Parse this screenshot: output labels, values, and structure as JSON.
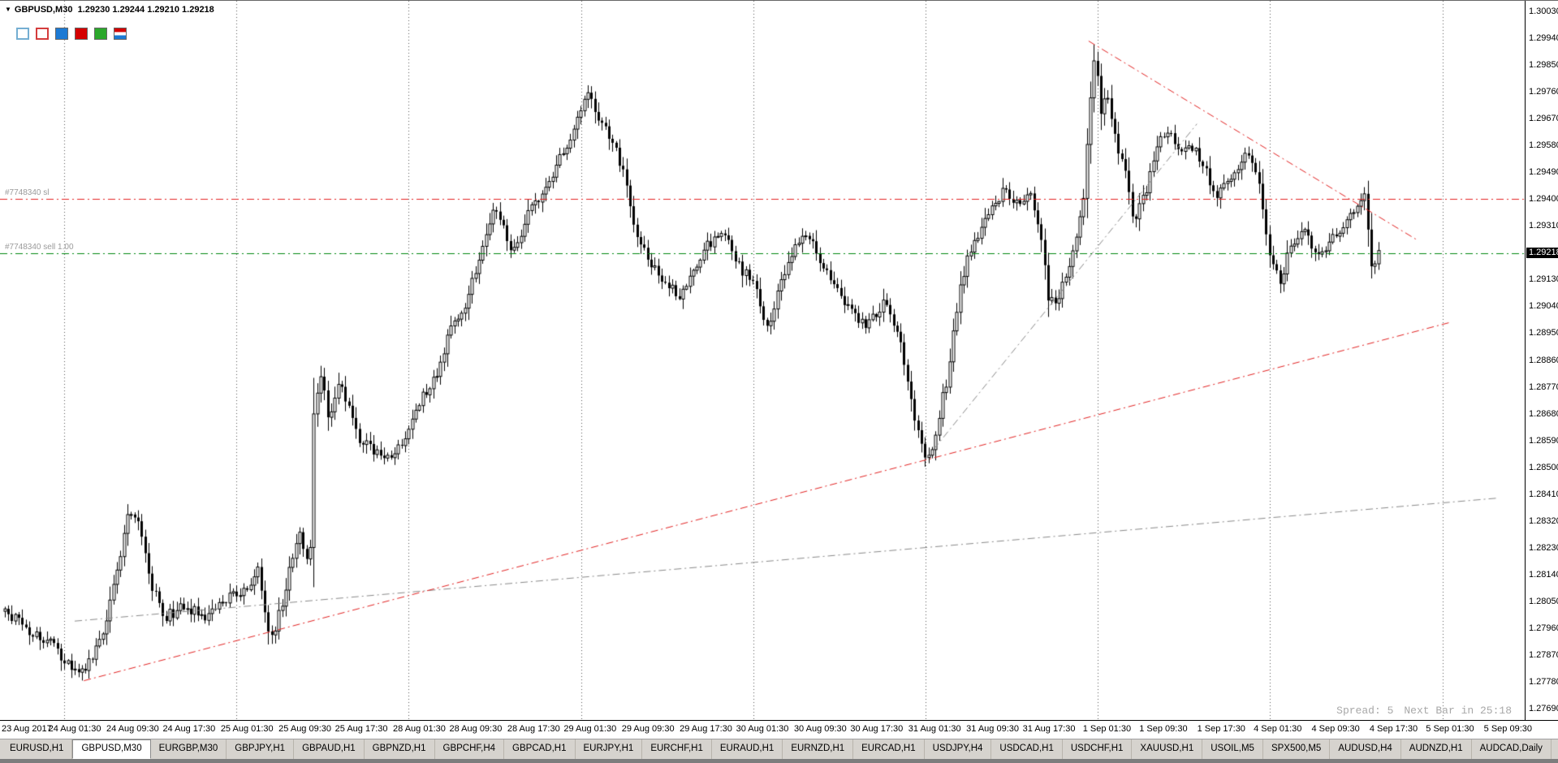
{
  "header": {
    "dropdown_glyph": "▼",
    "title": "GBPUSD,M30",
    "ohlc": "1.29230 1.29244 1.29210 1.29218"
  },
  "toolbar": {
    "swatches": [
      {
        "name": "swatch-outline-blue-icon",
        "style": "outline",
        "color": "#74aed2"
      },
      {
        "name": "swatch-outline-red-icon",
        "style": "outline",
        "color": "#d43c3c"
      },
      {
        "name": "swatch-fill-blue-icon",
        "style": "fill",
        "color": "#1c7ad4"
      },
      {
        "name": "swatch-fill-red-icon",
        "style": "fill",
        "color": "#d40000"
      },
      {
        "name": "swatch-fill-green-icon",
        "style": "fill",
        "color": "#2ca82c"
      },
      {
        "name": "swatch-stripes-icon",
        "style": "stripes",
        "colors": [
          "#d40000",
          "#ffffff",
          "#1c7ad4"
        ]
      }
    ]
  },
  "status": {
    "spread": "Spread: 5",
    "next_bar": "Next Bar in 25:18"
  },
  "tabs": {
    "active_index": 1,
    "items": [
      "EURUSD,H1",
      "GBPUSD,M30",
      "EURGBP,M30",
      "GBPJPY,H1",
      "GBPAUD,H1",
      "GBPNZD,H1",
      "GBPCHF,H4",
      "GBPCAD,H1",
      "EURJPY,H1",
      "EURCHF,H1",
      "EURAUD,H1",
      "EURNZD,H1",
      "EURCAD,H1",
      "USDJPY,H4",
      "USDCAD,H1",
      "USDCHF,H1",
      "XAUUSD,H1",
      "USOIL,M5",
      "SPX500,M5",
      "AUDUSD,H4",
      "AUDNZD,H1",
      "AUDCAD,Daily"
    ]
  },
  "chart_data": {
    "type": "candlestick",
    "symbol": "GBPUSD",
    "timeframe": "M30",
    "current_price": "1.29218",
    "candle_style": {
      "bull": "#ffffff",
      "bear": "#000000",
      "outline": "#000000"
    },
    "grid_color": "#555555",
    "y_axis": {
      "min": 1.27655,
      "max": 1.30065,
      "labels": [
        "1.30030",
        "1.29940",
        "1.29850",
        "1.29760",
        "1.29670",
        "1.29580",
        "1.29490",
        "1.29400",
        "1.29310",
        "1.29130",
        "1.29040",
        "1.28950",
        "1.28860",
        "1.28770",
        "1.28680",
        "1.28590",
        "1.28500",
        "1.28410",
        "1.28320",
        "1.28230",
        "1.28140",
        "1.28050",
        "1.27960",
        "1.27870",
        "1.27780",
        "1.27690"
      ]
    },
    "x_axis_labels": [
      {
        "label": "23 Aug 2017",
        "f": 0.005
      },
      {
        "label": "24 Aug 01:30",
        "f": 0.049
      },
      {
        "label": "24 Aug 09:30",
        "f": 0.087
      },
      {
        "label": "24 Aug 17:30",
        "f": 0.124
      },
      {
        "label": "25 Aug 01:30",
        "f": 0.162
      },
      {
        "label": "25 Aug 09:30",
        "f": 0.2
      },
      {
        "label": "25 Aug 17:30",
        "f": 0.237
      },
      {
        "label": "28 Aug 01:30",
        "f": 0.275
      },
      {
        "label": "28 Aug 09:30",
        "f": 0.312
      },
      {
        "label": "28 Aug 17:30",
        "f": 0.35
      },
      {
        "label": "29 Aug 01:30",
        "f": 0.387
      },
      {
        "label": "29 Aug 09:30",
        "f": 0.425
      },
      {
        "label": "29 Aug 17:30",
        "f": 0.463
      },
      {
        "label": "30 Aug 01:30",
        "f": 0.5
      },
      {
        "label": "30 Aug 09:30",
        "f": 0.538
      },
      {
        "label": "30 Aug 17:30",
        "f": 0.575
      },
      {
        "label": "31 Aug 01:30",
        "f": 0.613
      },
      {
        "label": "31 Aug 09:30",
        "f": 0.651
      },
      {
        "label": "31 Aug 17:30",
        "f": 0.688
      },
      {
        "label": "1 Sep 01:30",
        "f": 0.726
      },
      {
        "label": "1 Sep 09:30",
        "f": 0.763
      },
      {
        "label": "1 Sep 17:30",
        "f": 0.801
      },
      {
        "label": "4 Sep 01:30",
        "f": 0.838
      },
      {
        "label": "4 Sep 09:30",
        "f": 0.876
      },
      {
        "label": "4 Sep 17:30",
        "f": 0.914
      },
      {
        "label": "5 Sep 01:30",
        "f": 0.951
      },
      {
        "label": "5 Sep 09:30",
        "f": 0.989
      }
    ],
    "day_separators": [
      0.042,
      0.155,
      0.268,
      0.381,
      0.494,
      0.607,
      0.72,
      0.833,
      0.946
    ],
    "trendlines": [
      {
        "x1": 0.049,
        "p1": 1.27984,
        "x2": 0.983,
        "p2": 1.28397,
        "color": "#8a8a8a"
      },
      {
        "x1": 0.606,
        "p1": 1.2852,
        "x2": 0.785,
        "p2": 1.29652,
        "color": "#8a8a8a"
      },
      {
        "x1": 0.055,
        "p1": 1.27784,
        "x2": 0.951,
        "p2": 1.28986,
        "color": "#e32222"
      },
      {
        "x1": 0.714,
        "p1": 1.2993,
        "x2": 0.929,
        "p2": 1.29264,
        "color": "#e32222"
      }
    ],
    "order_lines": [
      {
        "label": "#7748340 sl",
        "price": 1.294,
        "color": "#e32222"
      },
      {
        "label": "#7748340 sell 1.00",
        "price": 1.29218,
        "color": "#00870f"
      }
    ],
    "bars": 392,
    "price_path_anchors": [
      [
        0.003,
        1.2802
      ],
      [
        0.02,
        1.2795
      ],
      [
        0.035,
        1.279
      ],
      [
        0.052,
        1.2779
      ],
      [
        0.065,
        1.279
      ],
      [
        0.075,
        1.281
      ],
      [
        0.085,
        1.2836
      ],
      [
        0.092,
        1.283
      ],
      [
        0.098,
        1.2812
      ],
      [
        0.108,
        1.28
      ],
      [
        0.121,
        1.2803
      ],
      [
        0.134,
        1.28
      ],
      [
        0.147,
        1.2805
      ],
      [
        0.16,
        1.2808
      ],
      [
        0.169,
        1.2815
      ],
      [
        0.177,
        1.279
      ],
      [
        0.185,
        1.2805
      ],
      [
        0.196,
        1.2828
      ],
      [
        0.203,
        1.2815
      ],
      [
        0.206,
        1.2872
      ],
      [
        0.211,
        1.2882
      ],
      [
        0.216,
        1.2865
      ],
      [
        0.222,
        1.2878
      ],
      [
        0.229,
        1.287
      ],
      [
        0.237,
        1.2858
      ],
      [
        0.245,
        1.2856
      ],
      [
        0.255,
        1.2852
      ],
      [
        0.265,
        1.2858
      ],
      [
        0.275,
        1.2872
      ],
      [
        0.285,
        1.288
      ],
      [
        0.294,
        1.2895
      ],
      [
        0.304,
        1.2903
      ],
      [
        0.314,
        1.292
      ],
      [
        0.324,
        1.2938
      ],
      [
        0.33,
        1.293
      ],
      [
        0.337,
        1.2922
      ],
      [
        0.347,
        1.2935
      ],
      [
        0.357,
        1.2942
      ],
      [
        0.366,
        1.2952
      ],
      [
        0.376,
        1.2962
      ],
      [
        0.385,
        1.2975
      ],
      [
        0.391,
        1.2968
      ],
      [
        0.399,
        1.2962
      ],
      [
        0.407,
        1.2952
      ],
      [
        0.416,
        1.293
      ],
      [
        0.425,
        1.292
      ],
      [
        0.435,
        1.2912
      ],
      [
        0.445,
        1.2908
      ],
      [
        0.455,
        1.2915
      ],
      [
        0.465,
        1.2925
      ],
      [
        0.474,
        1.2928
      ],
      [
        0.484,
        1.2918
      ],
      [
        0.494,
        1.2912
      ],
      [
        0.504,
        1.2895
      ],
      [
        0.51,
        1.291
      ],
      [
        0.52,
        1.2922
      ],
      [
        0.53,
        1.2928
      ],
      [
        0.54,
        1.2918
      ],
      [
        0.55,
        1.2908
      ],
      [
        0.56,
        1.29
      ],
      [
        0.569,
        1.2897
      ],
      [
        0.579,
        1.2905
      ],
      [
        0.586,
        1.2898
      ],
      [
        0.592,
        1.2888
      ],
      [
        0.599,
        1.2868
      ],
      [
        0.605,
        1.2856
      ],
      [
        0.61,
        1.2852
      ],
      [
        0.615,
        1.2866
      ],
      [
        0.622,
        1.2882
      ],
      [
        0.63,
        1.2912
      ],
      [
        0.638,
        1.2925
      ],
      [
        0.648,
        1.2935
      ],
      [
        0.658,
        1.2942
      ],
      [
        0.667,
        1.2938
      ],
      [
        0.675,
        1.2942
      ],
      [
        0.682,
        1.2928
      ],
      [
        0.688,
        1.2905
      ],
      [
        0.695,
        1.2908
      ],
      [
        0.703,
        1.292
      ],
      [
        0.71,
        1.2938
      ],
      [
        0.715,
        1.2975
      ],
      [
        0.718,
        1.299
      ],
      [
        0.722,
        1.297
      ],
      [
        0.726,
        1.2975
      ],
      [
        0.732,
        1.2958
      ],
      [
        0.738,
        1.295
      ],
      [
        0.744,
        1.2932
      ],
      [
        0.751,
        1.2942
      ],
      [
        0.759,
        1.2958
      ],
      [
        0.766,
        1.2962
      ],
      [
        0.774,
        1.2955
      ],
      [
        0.781,
        1.2958
      ],
      [
        0.789,
        1.2952
      ],
      [
        0.797,
        1.2942
      ],
      [
        0.805,
        1.2945
      ],
      [
        0.813,
        1.2952
      ],
      [
        0.819,
        1.2956
      ],
      [
        0.826,
        1.2945
      ],
      [
        0.832,
        1.2922
      ],
      [
        0.839,
        1.2912
      ],
      [
        0.847,
        1.2925
      ],
      [
        0.856,
        1.2928
      ],
      [
        0.864,
        1.292
      ],
      [
        0.872,
        1.2925
      ],
      [
        0.88,
        1.293
      ],
      [
        0.888,
        1.2935
      ],
      [
        0.895,
        1.294
      ],
      [
        0.9,
        1.2915
      ],
      [
        0.904,
        1.29218
      ]
    ]
  }
}
